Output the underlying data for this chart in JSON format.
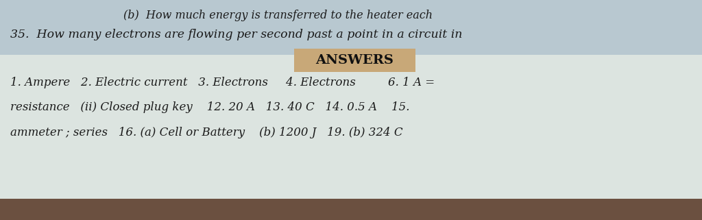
{
  "bg_color_header": "#b8c8d0",
  "bg_color_body": "#dce4e0",
  "bg_color_bottom": "#6b5040",
  "header_line1": "(b)  How much energy is transferred to the heater each",
  "header_line2": "35.  How many electrons are flowing per second past a point in a circuit in",
  "answers_box_color": "#c8a878",
  "answers_title": "ANSWERS",
  "answers_title_color": "#111111",
  "line1": "1. Ampere   2. Electric current   3. Electrons     4. Electrons         6. 1 A =",
  "line2": "resistance   (ii) Closed plug key    12. 20 A   13. 40 C   14. 0.5 A    15.",
  "line3": "ammeter ; series   16. (a) Cell or Battery    (b) 1200 J   19. (b) 324 C",
  "text_color": "#1a1a1a",
  "header_color": "#1a1a1a",
  "figwidth": 10.24,
  "figheight": 3.21,
  "dpi": 100
}
